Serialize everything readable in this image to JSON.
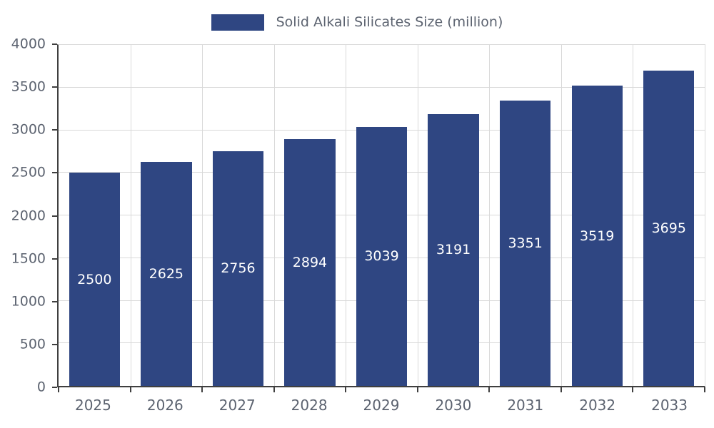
{
  "chart_data": {
    "type": "bar",
    "title": "Solid Alkali Silicates Size (million)",
    "categories": [
      "2025",
      "2026",
      "2027",
      "2028",
      "2029",
      "2030",
      "2031",
      "2032",
      "2033"
    ],
    "values": [
      2500,
      2625,
      2756,
      2894,
      3039,
      3191,
      3351,
      3519,
      3695
    ],
    "xlabel": "",
    "ylabel": "",
    "ylim": [
      0,
      4000
    ],
    "ytick_step": 500,
    "ytick_labels": [
      "0",
      "500",
      "1000",
      "1500",
      "2000",
      "2500",
      "3000",
      "3500",
      "4000"
    ],
    "grid": true,
    "legend_position": "top",
    "bar_color": "#2f4682",
    "bar_label_color": "#ffffff",
    "axis_text_color": "#5c6370",
    "grid_color": "#d9d9d9",
    "axis_line_color": "#3f3f3f",
    "background_color": "#ffffff"
  }
}
